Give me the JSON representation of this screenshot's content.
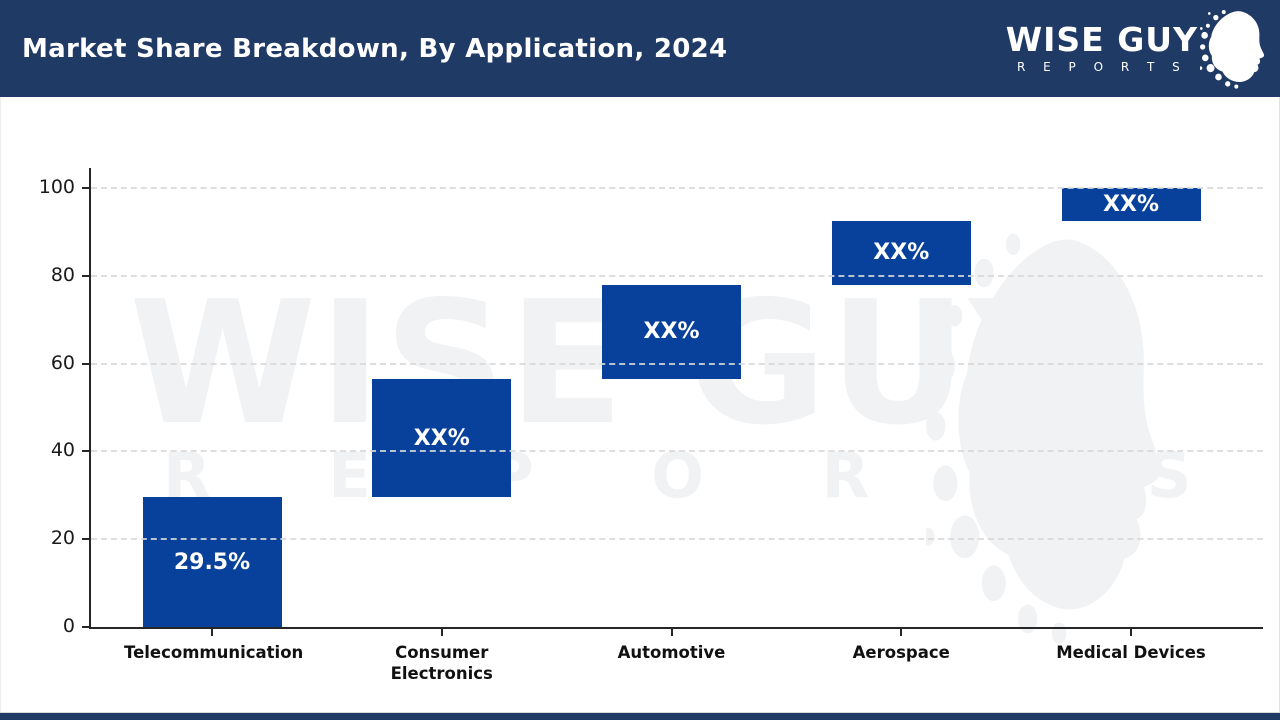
{
  "header": {
    "title": "Market Share Breakdown, By Application, 2024",
    "logo": {
      "name": "WISE GUY",
      "sub": "R E P O R T S"
    }
  },
  "watermark": {
    "name": "WISE GUY",
    "sub": "R E P O R T S"
  },
  "chart_data": {
    "type": "bar",
    "subtype": "waterfall",
    "title": "Market Share Breakdown, By Application, 2024",
    "categories": [
      "Telecommunication",
      "Consumer Electronics",
      "Automotive",
      "Aerospace",
      "Medical Devices"
    ],
    "segments": [
      {
        "category": "Telecommunication",
        "start": 0,
        "end": 29.5,
        "label": "29.5%"
      },
      {
        "category": "Consumer Electronics",
        "start": 29.5,
        "end": 56.5,
        "label": "XX%"
      },
      {
        "category": "Automotive",
        "start": 56.5,
        "end": 78,
        "label": "XX%"
      },
      {
        "category": "Aerospace",
        "start": 78,
        "end": 92.5,
        "label": "XX%"
      },
      {
        "category": "Medical Devices",
        "start": 92.5,
        "end": 100,
        "label": "XX%"
      }
    ],
    "y_ticks": [
      0,
      20,
      40,
      60,
      80,
      100
    ],
    "ylim": [
      0,
      100
    ],
    "xlabel": "",
    "ylabel": "",
    "grid": {
      "horizontal": true,
      "style": "dashed"
    },
    "legend": null,
    "bar_color": "#07419b",
    "bar_label_color": "#ffffff"
  },
  "colors": {
    "header_bg": "#203a66",
    "footer_bg": "#203a66",
    "axis": "#262626",
    "grid": "#d9d9d9",
    "tick_text": "#1a1a1a",
    "category_text": "#111111",
    "watermark": "#f1f2f4",
    "page_bg": "#ffffff"
  }
}
